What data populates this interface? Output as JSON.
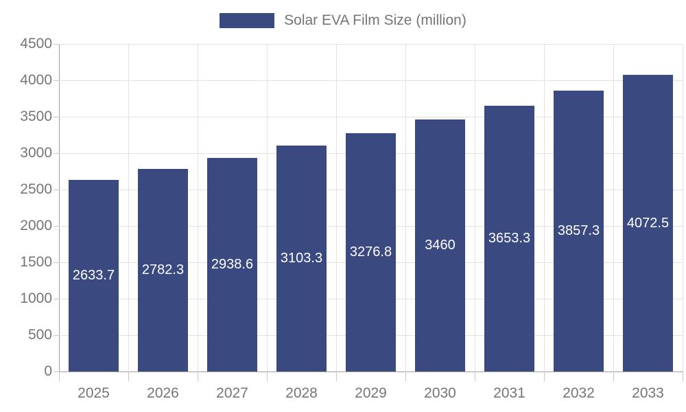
{
  "legend": {
    "label": "Solar EVA Film Size (million)",
    "swatch_color": "#3a4a81"
  },
  "chart_data": {
    "type": "bar",
    "title": "Solar EVA Film Size (million)",
    "categories": [
      "2025",
      "2026",
      "2027",
      "2028",
      "2029",
      "2030",
      "2031",
      "2032",
      "2033"
    ],
    "series": [
      {
        "name": "Solar EVA Film Size (million)",
        "values": [
          2633.7,
          2782.3,
          2938.6,
          3103.3,
          3276.8,
          3460,
          3653.3,
          3857.3,
          4072.5
        ]
      }
    ],
    "value_labels": [
      "2633.7",
      "2782.3",
      "2938.6",
      "3103.3",
      "3276.8",
      "3460",
      "3653.3",
      "3857.3",
      "4072.5"
    ],
    "xlabel": "",
    "ylabel": "",
    "ylim": [
      0,
      4500
    ],
    "y_ticks": [
      0,
      500,
      1000,
      1500,
      2000,
      2500,
      3000,
      3500,
      4000,
      4500
    ],
    "grid": true,
    "legend_position": "top-center",
    "bar_color": "#3a4a81",
    "value_label_color": "#ffffff",
    "value_label_position": "inside-center",
    "axis_color": "#9e9e9e",
    "gridline_color": "#e2e2e2",
    "tick_color": "#c6c6c6",
    "text_color": "#757575"
  }
}
